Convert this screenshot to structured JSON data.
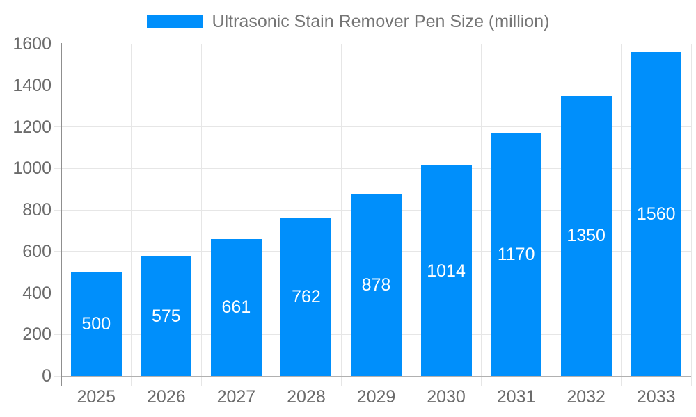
{
  "chart_data": {
    "type": "bar",
    "title": "Ultrasonic Stain Remover Pen Size (million)",
    "categories": [
      "2025",
      "2026",
      "2027",
      "2028",
      "2029",
      "2030",
      "2031",
      "2032",
      "2033"
    ],
    "series": [
      {
        "name": "Ultrasonic Stain Remover Pen Size (million)",
        "values": [
          500,
          575,
          661,
          762,
          878,
          1014,
          1170,
          1350,
          1560
        ]
      }
    ],
    "value_labels": [
      "500",
      "575",
      "661",
      "762",
      "878",
      "1014",
      "1170",
      "1350",
      "1560"
    ],
    "xlabel": "",
    "ylabel": "",
    "ylim": [
      0,
      1600
    ],
    "yticks": [
      0,
      200,
      400,
      600,
      800,
      1000,
      1200,
      1400,
      1600
    ],
    "grid": "on",
    "legend_position": "top-center",
    "value_label_position": "inside-center"
  },
  "colors": {
    "bar": "#008FFB",
    "legend_text": "#757575",
    "axis_text": "#6b6b6b",
    "gridline": "#e6e6e6",
    "x_axis_line": "#b0b0b0",
    "y_axis_line": "#8f8f8f",
    "value_label": "#ffffff",
    "background": "#ffffff"
  }
}
